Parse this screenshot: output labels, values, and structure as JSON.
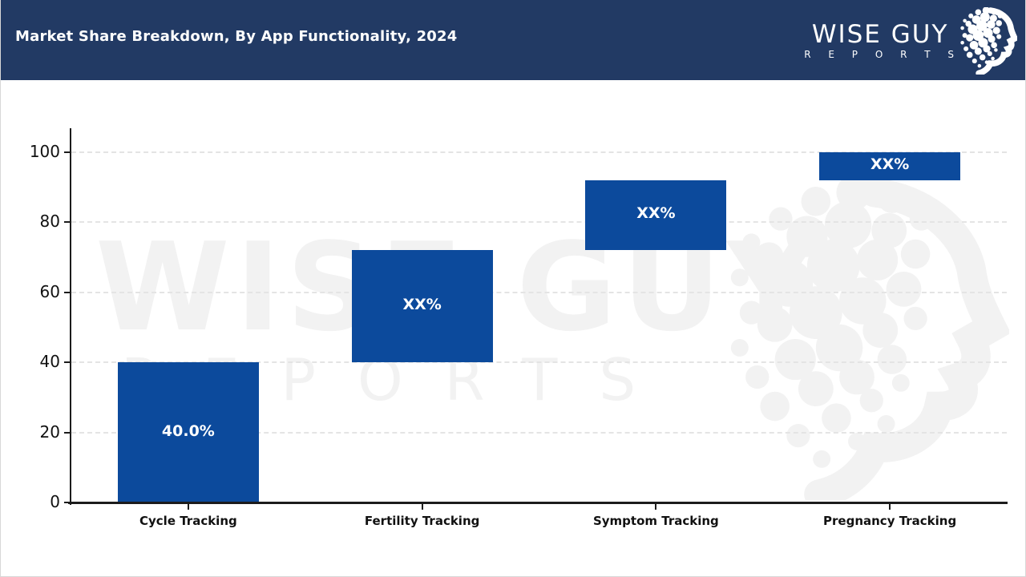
{
  "header": {
    "title": "Market Share Breakdown, By App Functionality, 2024",
    "logo": {
      "line1": "WISE GUY",
      "line2": "R E P O R T S"
    }
  },
  "watermark": {
    "line1": "WISE GUY",
    "line2": "REPORTS"
  },
  "chart_data": {
    "type": "bar",
    "subtype": "waterfall",
    "title": "Market Share Breakdown, By App Functionality, 2024",
    "categories": [
      "Cycle Tracking",
      "Fertility Tracking",
      "Symptom Tracking",
      "Pregnancy Tracking"
    ],
    "segments": [
      {
        "category": "Cycle Tracking",
        "start": 0,
        "end": 40,
        "value": 40,
        "label": "40.0%"
      },
      {
        "category": "Fertility Tracking",
        "start": 40,
        "end": 72,
        "value": 32,
        "label": "XX%"
      },
      {
        "category": "Symptom Tracking",
        "start": 72,
        "end": 92,
        "value": 20,
        "label": "XX%"
      },
      {
        "category": "Pregnancy Tracking",
        "start": 92,
        "end": 100,
        "value": 8,
        "label": "XX%"
      }
    ],
    "xlabel": "",
    "ylabel": "",
    "yticks": [
      0,
      20,
      40,
      60,
      80,
      100
    ],
    "ylim": [
      0,
      106
    ],
    "grid": "horizontal-dashed",
    "legend": null,
    "bar_color": "#0c4a9c",
    "bar_label_color": "#ffffff"
  },
  "colors": {
    "header_bg": "#223a64",
    "bar": "#0c4a9c",
    "axis": "#1c1c1c",
    "grid": "#e4e4e4",
    "watermark": "#f2f2f2",
    "page_border": "#d8d8d8",
    "text": "#111111"
  }
}
